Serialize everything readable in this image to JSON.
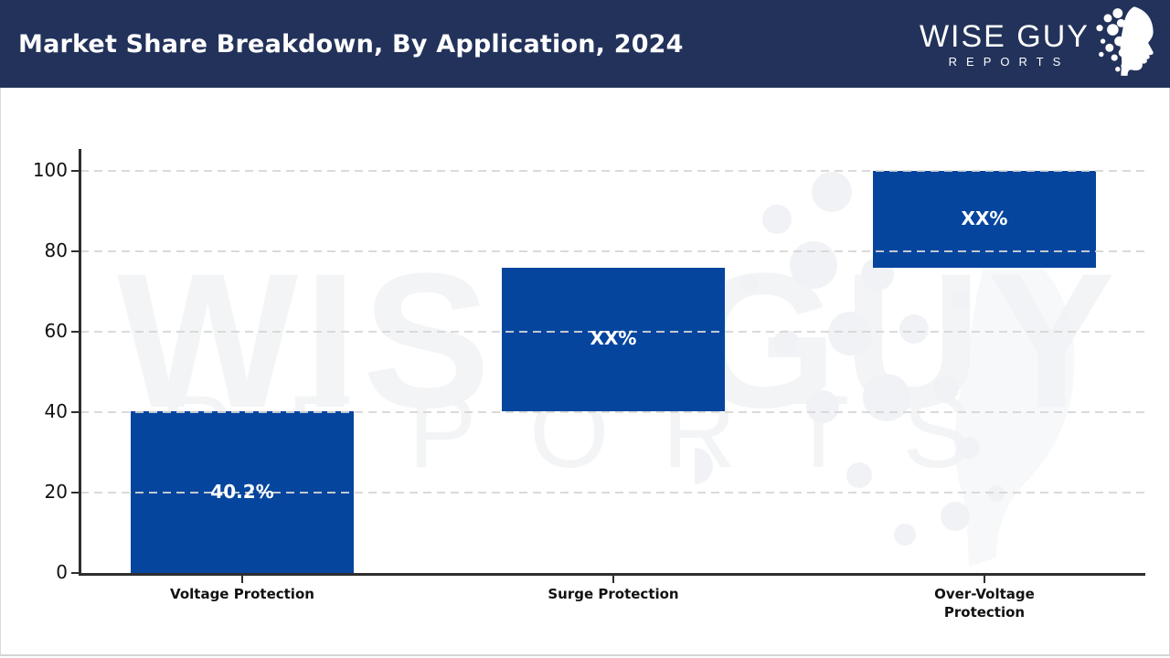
{
  "header": {
    "title": "Market Share Breakdown, By Application, 2024",
    "logo_line1": "WISE GUY",
    "logo_line2": "REPORTS"
  },
  "watermark": {
    "line1": "WISE GUY",
    "line2": "REPORTS"
  },
  "colors": {
    "header_bg": "#22325a",
    "bar": "#05459e",
    "grid": "#d9d9d9",
    "axis": "#2e2e2e",
    "bar_label_text": "#ffffff"
  },
  "chart_data": {
    "type": "bar",
    "variant": "floating-segment-waterfall",
    "title": "Market Share Breakdown, By Application, 2024",
    "categories": [
      "Voltage Protection",
      "Surge Protection",
      "Over-Voltage Protection"
    ],
    "segments": [
      {
        "category": "Voltage Protection",
        "from": 0,
        "to": 40.2,
        "label": "40.2%"
      },
      {
        "category": "Surge Protection",
        "from": 40.2,
        "to": 76,
        "label": "XX%"
      },
      {
        "category": "Over-Voltage Protection",
        "from": 76,
        "to": 100,
        "label": "XX%"
      }
    ],
    "xlabel": "",
    "ylabel": "",
    "ylim": [
      0,
      100
    ],
    "yticks": [
      0,
      20,
      40,
      60,
      80,
      100
    ],
    "grid": "horizontal-dashed",
    "legend": "none",
    "bar_color": "#05459e"
  }
}
